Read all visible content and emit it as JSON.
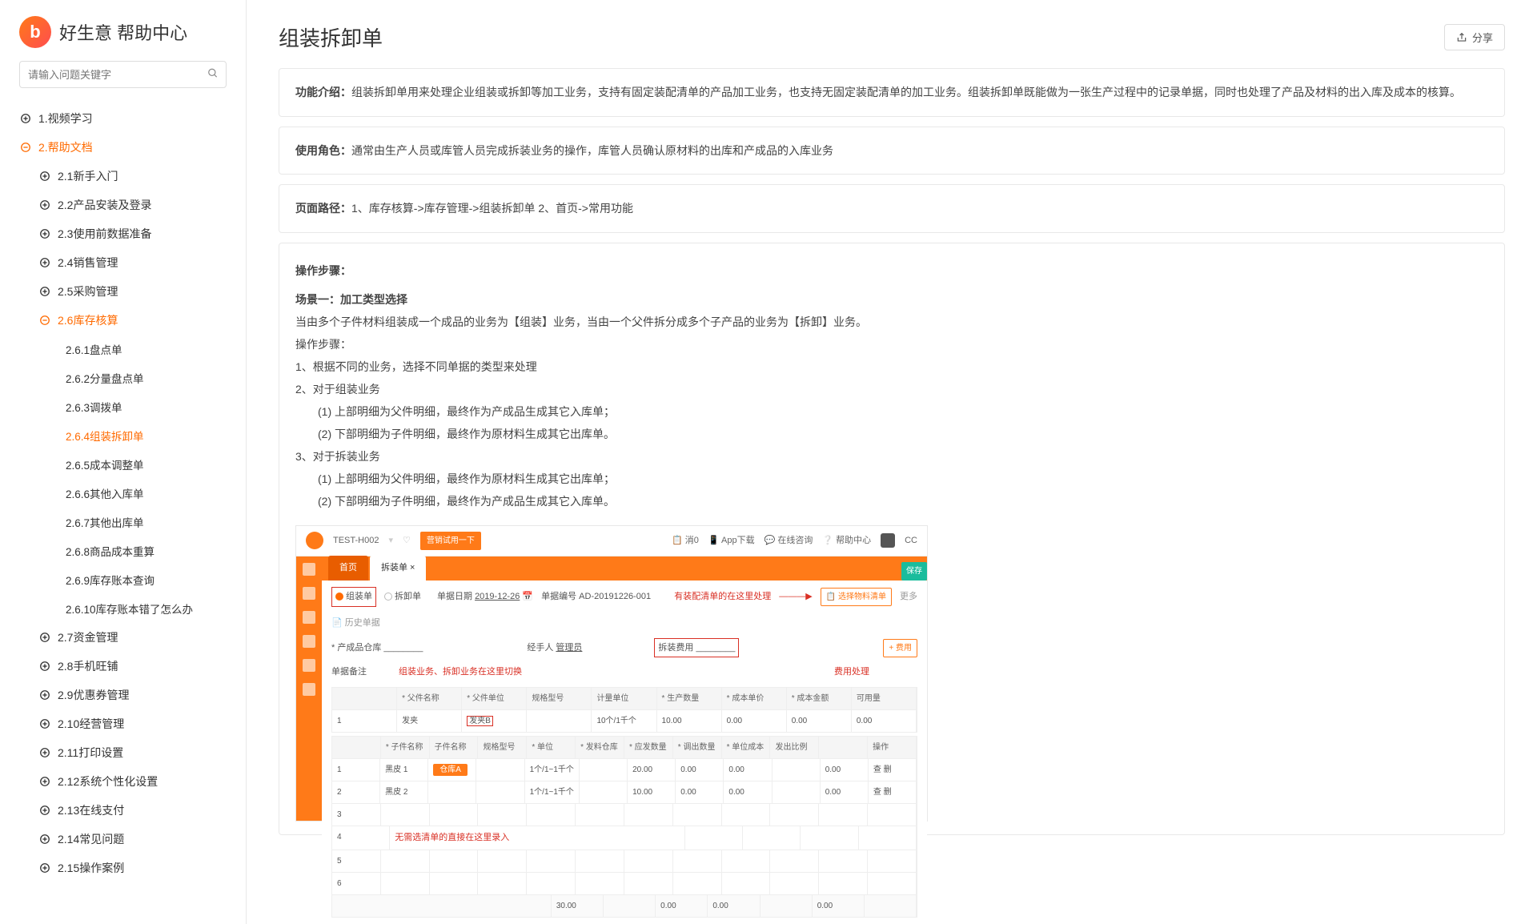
{
  "header": {
    "logo_glyph": "b",
    "site_title": "好生意 帮助中心",
    "search_placeholder": "请输入问题关键字"
  },
  "sidebar": {
    "items": [
      {
        "label": "1.视频学习",
        "level": 1,
        "icon": "plus"
      },
      {
        "label": "2.帮助文档",
        "level": 1,
        "icon": "minus",
        "expanded": true
      },
      {
        "label": "2.1新手入门",
        "level": 2,
        "icon": "plus"
      },
      {
        "label": "2.2产品安装及登录",
        "level": 2,
        "icon": "plus"
      },
      {
        "label": "2.3使用前数据准备",
        "level": 2,
        "icon": "plus"
      },
      {
        "label": "2.4销售管理",
        "level": 2,
        "icon": "plus"
      },
      {
        "label": "2.5采购管理",
        "level": 2,
        "icon": "plus"
      },
      {
        "label": "2.6库存核算",
        "level": 2,
        "icon": "minus",
        "expanded": true
      },
      {
        "label": "2.6.1盘点单",
        "level": 3
      },
      {
        "label": "2.6.2分量盘点单",
        "level": 3
      },
      {
        "label": "2.6.3调拨单",
        "level": 3
      },
      {
        "label": "2.6.4组装拆卸单",
        "level": 3,
        "active": true
      },
      {
        "label": "2.6.5成本调整单",
        "level": 3
      },
      {
        "label": "2.6.6其他入库单",
        "level": 3
      },
      {
        "label": "2.6.7其他出库单",
        "level": 3
      },
      {
        "label": "2.6.8商品成本重算",
        "level": 3
      },
      {
        "label": "2.6.9库存账本查询",
        "level": 3
      },
      {
        "label": "2.6.10库存账本错了怎么办",
        "level": 3
      },
      {
        "label": "2.7资金管理",
        "level": 2,
        "icon": "plus"
      },
      {
        "label": "2.8手机旺铺",
        "level": 2,
        "icon": "plus"
      },
      {
        "label": "2.9优惠券管理",
        "level": 2,
        "icon": "plus"
      },
      {
        "label": "2.10经营管理",
        "level": 2,
        "icon": "plus"
      },
      {
        "label": "2.11打印设置",
        "level": 2,
        "icon": "plus"
      },
      {
        "label": "2.12系统个性化设置",
        "level": 2,
        "icon": "plus"
      },
      {
        "label": "2.13在线支付",
        "level": 2,
        "icon": "plus"
      },
      {
        "label": "2.14常见问题",
        "level": 2,
        "icon": "plus"
      },
      {
        "label": "2.15操作案例",
        "level": 2,
        "icon": "plus"
      }
    ]
  },
  "page": {
    "title": "组装拆卸单",
    "share_label": "分享"
  },
  "cards": {
    "intro_label": "功能介绍：",
    "intro_text": "组装拆卸单用来处理企业组装或拆卸等加工业务，支持有固定装配清单的产品加工业务，也支持无固定装配清单的加工业务。组装拆卸单既能做为一张生产过程中的记录单据，同时也处理了产品及材料的出入库及成本的核算。",
    "role_label": "使用角色：",
    "role_text": "通常由生产人员或库管人员完成拆装业务的操作，库管人员确认原材料的出库和产成品的入库业务",
    "path_label": "页面路径：",
    "path_text": "1、库存核算->库存管理->组装拆卸单  2、首页->常用功能"
  },
  "steps": {
    "title": "操作步骤：",
    "scene_title": "场景一：加工类型选择",
    "scene_desc": "当由多个子件材料组装成一个成品的业务为【组装】业务，当由一个父件拆分成多个子产品的业务为【拆卸】业务。",
    "sub_title": "操作步骤：",
    "s1": "1、根据不同的业务，选择不同单据的类型来处理",
    "s2": "2、对于组装业务",
    "s2a": "(1) 上部明细为父件明细，最终作为产成品生成其它入库单；",
    "s2b": "(2) 下部明细为子件明细，最终作为原材料生成其它出库单。",
    "s3": "3、对于拆装业务",
    "s3a": "(1) 上部明细为父件明细，最终作为原材料生成其它出库单；",
    "s3b": "(2) 下部明细为子件明细，最终作为产成品生成其它入库单。"
  },
  "screenshot": {
    "company": "TEST-H002",
    "topbar_items": [
      "消0",
      "App下载",
      "在线咨询",
      "帮助中心",
      "CC"
    ],
    "tab_home": "首页",
    "tab_form": "拆装单",
    "radio_assemble": "组装单",
    "radio_disassemble": "拆卸单",
    "date_label": "单据日期",
    "date_value": "2019-12-26",
    "doc_label": "单据编号",
    "doc_value": "AD-20191226-001",
    "anno_list": "有装配清单的在这里处理",
    "btn_list": "选择物料清单",
    "btn_more": "更多",
    "btn_history": "历史单据",
    "warehouse_label": "产成品仓库",
    "handler_label": "经手人",
    "handler_value": "管理员",
    "fee_label": "拆装费用",
    "btn_fee": "费用",
    "anno_switch": "组装业务、拆卸业务在这里切换",
    "remark_label": "单据备注",
    "anno_fee": "费用处理",
    "parent_cols": [
      "",
      "* 父件名称",
      "* 父件单位",
      "规格型号",
      "计量单位",
      "* 生产数量",
      "* 成本单价",
      "* 成本金额",
      "可用量"
    ],
    "parent_row": [
      "1",
      "发夹",
      "发夹B",
      "",
      "10个/1千个",
      "10.00",
      "0.00",
      "0.00",
      "0.00"
    ],
    "child_cols": [
      "",
      "* 子件名称",
      "子件名称",
      "规格型号",
      "* 单位",
      "* 发料仓库",
      "* 应发数量",
      "* 调出数量",
      "* 单位成本",
      "发出比例",
      "",
      "操作"
    ],
    "child_rows": [
      [
        "1",
        "黑皮 1",
        "",
        "",
        "1个/1~1千个",
        "",
        "20.00",
        "0.00",
        "0.00",
        "",
        "0.00",
        "查 删"
      ],
      [
        "2",
        "黑皮 2",
        "",
        "",
        "1个/1~1千个",
        "",
        "10.00",
        "0.00",
        "0.00",
        "",
        "0.00",
        "查 删"
      ]
    ],
    "anno_direct": "无需选清单的直接在这里录入",
    "totals": [
      "30.00",
      "0.00",
      "0.00",
      "0.00"
    ],
    "highlight": "仓库A"
  },
  "colors": {
    "accent": "#ff6a00",
    "border": "#e8e8e8",
    "text": "#333333",
    "muted": "#888888",
    "anno": "#d93025"
  }
}
